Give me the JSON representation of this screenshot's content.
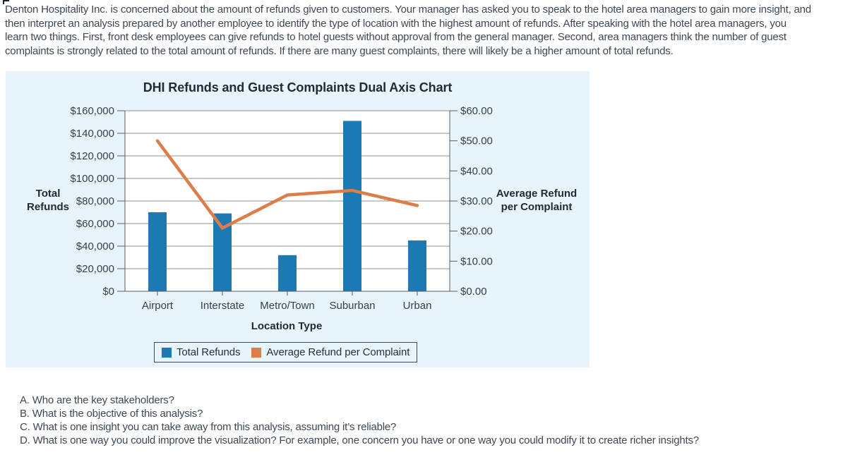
{
  "intro": {
    "lines": [
      "Denton Hospitality Inc. is concerned about the amount of refunds given to customers. Your manager has asked you to speak to the hotel area managers to gain more insight, and",
      "then interpret an analysis prepared by another employee to identify the type of location with the highest amount of refunds. After speaking with the hotel area managers, you",
      "learn two things. First, front desk employees can give refunds to hotel guests without approval from the general manager. Second, area managers think the number of guest",
      "complaints is strongly related to the total amount of refunds. If there are many guest complaints, there will likely be a higher amount of total refunds."
    ]
  },
  "chart_data": {
    "type": "bar+line (dual axis)",
    "title": "DHI Refunds and Guest Complaints Dual Axis Chart",
    "categories": [
      "Airport",
      "Interstate",
      "Metro/Town",
      "Suburban",
      "Urban"
    ],
    "series": [
      {
        "name": "Total Refunds",
        "type": "bar",
        "axis": "left",
        "color": "#1b79b4",
        "values": [
          70000,
          69000,
          32000,
          151000,
          45000
        ]
      },
      {
        "name": "Average Refund per Complaint",
        "type": "line",
        "axis": "right",
        "color": "#dd7e48",
        "values": [
          50,
          21,
          32,
          33.5,
          28.5
        ]
      }
    ],
    "xlabel": "Location Type",
    "ylabel_left": "Total Refunds",
    "ylabel_right": "Average Refund per Complaint",
    "left_axis": {
      "min": 0,
      "max": 160000,
      "step": 20000,
      "tick_labels": [
        "$160,000",
        "$140,000",
        "$120,000",
        "$100,000",
        "$80,000",
        "$60,000",
        "$40,000",
        "$20,000",
        "$0"
      ]
    },
    "right_axis": {
      "min": 0,
      "max": 60,
      "step": 10,
      "tick_labels": [
        "$60.00",
        "$50.00",
        "$40.00",
        "$30.00",
        "$20.00",
        "$10.00",
        "$0.00"
      ]
    },
    "legend": {
      "position": "bottom",
      "entries": [
        "Total Refunds",
        "Average Refund per Complaint"
      ]
    },
    "grid": true,
    "colors": {
      "panel_background": "#e7f4fc",
      "grid": "#909296",
      "axis": "#595d61",
      "tick_label": "#343f4b"
    }
  },
  "questions": {
    "lines": [
      "A. Who are the key stakeholders?",
      "B. What is the objective of this analysis?",
      "C. What is one insight you can take away from this analysis, assuming it’s reliable?",
      "D. What is one way you could improve the visualization? For example, one concern you have or one way you could modify it to create richer insights?"
    ]
  }
}
